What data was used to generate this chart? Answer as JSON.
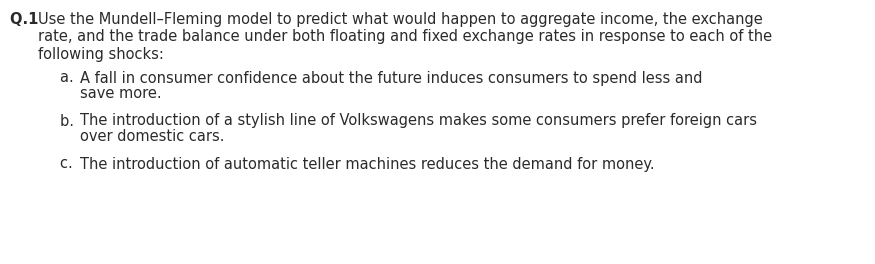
{
  "background_color": "#ffffff",
  "text_color": "#2b2b2b",
  "font_family": "DejaVu Sans",
  "question_label": "Q.1 ",
  "question_text": "Use the Mundell–Fleming model to predict what would happen to aggregate income, the exchange\nrate, and the trade balance under both floating and fixed exchange rates in response to each of the\nfollowing shocks:",
  "items": [
    {
      "label": "a. ",
      "line1": "A fall in consumer confidence about the future induces consumers to spend less and",
      "line2": "save more."
    },
    {
      "label": "b. ",
      "line1": "The introduction of a stylish line of Volkswagens makes some consumers prefer foreign cars",
      "line2": "over domestic cars."
    },
    {
      "label": "c. ",
      "line1": "The introduction of automatic teller machines reduces the demand for money.",
      "line2": null
    }
  ],
  "font_size": 10.5,
  "figsize": [
    8.75,
    2.64
  ],
  "dpi": 100
}
